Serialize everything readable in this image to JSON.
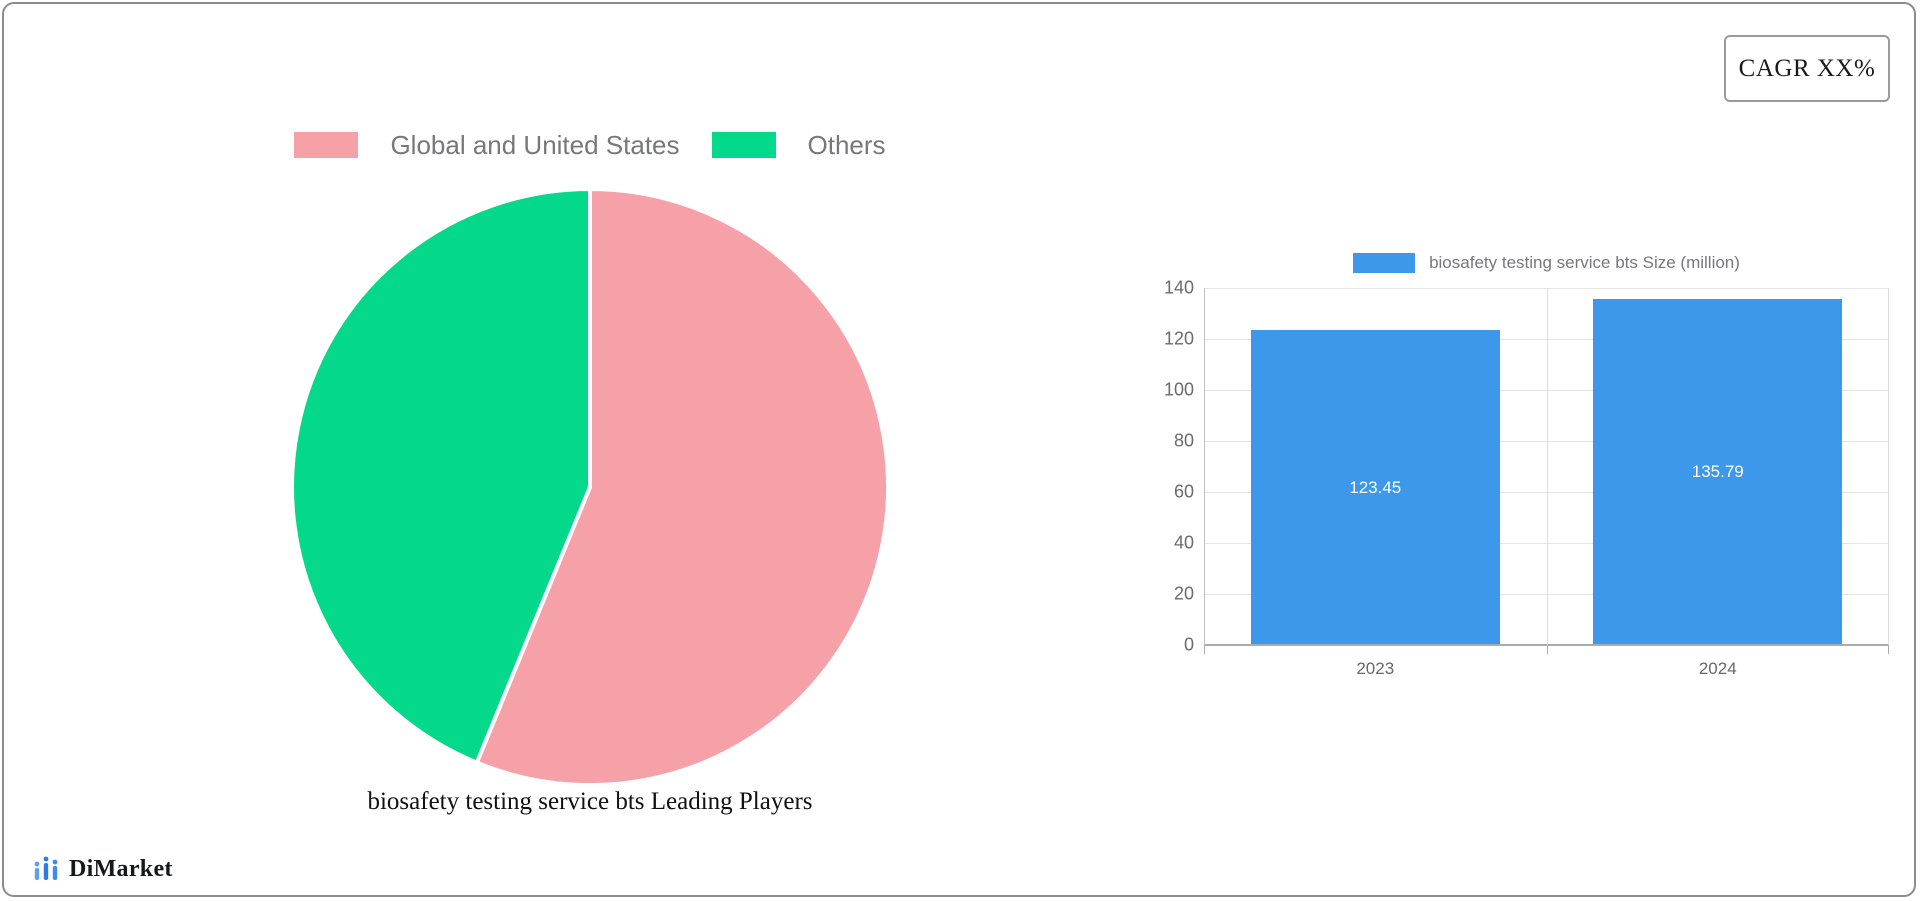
{
  "cagr_box": {
    "label": "CAGR XX%"
  },
  "footer": {
    "brand": "DiMarket",
    "logo_icon": "bar-chart-icon"
  },
  "colors": {
    "pie_slice_1": "#f5a1a7",
    "pie_slice_2": "#04d98b",
    "bar_series": "#3d97ea",
    "legend_text": "#77787b",
    "axis_text": "#6b6b6b"
  },
  "chart_data": [
    {
      "type": "pie",
      "title": "biosafety testing service bts Leading Players",
      "labels": [
        "Global and United States",
        "Others"
      ],
      "values": [
        56.2,
        43.8
      ],
      "colors": [
        "#f5a1a7",
        "#04d98b"
      ],
      "start_angle_deg": 0,
      "direction": "clockwise",
      "legend_position": "top"
    },
    {
      "type": "bar",
      "legend": "biosafety testing service bts Size (million)",
      "categories": [
        "2023",
        "2024"
      ],
      "values": [
        123.45,
        135.79
      ],
      "value_labels": [
        "123.45",
        "135.79"
      ],
      "bar_color": "#3d97ea",
      "value_label_color": "#ffffff",
      "ylim": [
        0,
        140
      ],
      "yticks": [
        0,
        20,
        40,
        60,
        80,
        100,
        120,
        140
      ],
      "grid": true,
      "legend_position": "top"
    }
  ]
}
